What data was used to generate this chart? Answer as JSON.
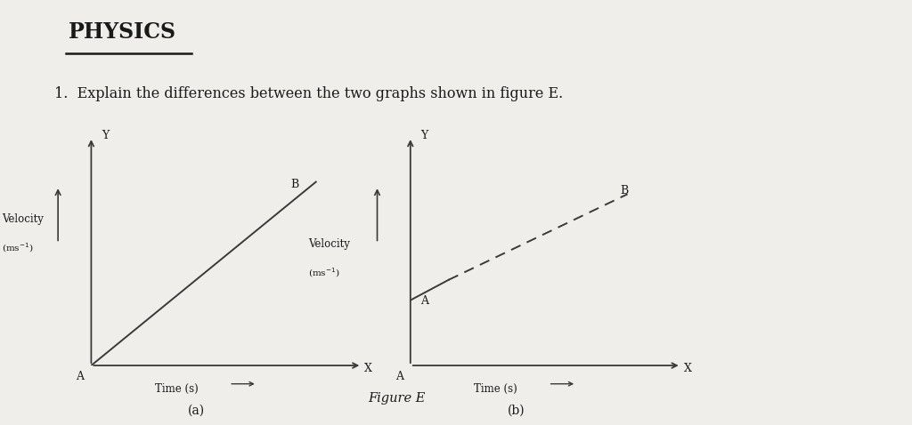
{
  "title": "PHYSICS",
  "question": "1.  Explain the differences between the two graphs shown in figure E.",
  "figure_label": "Figure E",
  "graph_a_label": "(a)",
  "graph_b_label": "(b)",
  "bg_color": "#f0eeea",
  "shadow_color": "#c8c4bc",
  "text_color": "#1a1a1a",
  "line_color": "#3a3a3a",
  "ylabel_a": "Velocity",
  "yunits": "(ms⁻¹)",
  "xlabel": "Time (s)"
}
